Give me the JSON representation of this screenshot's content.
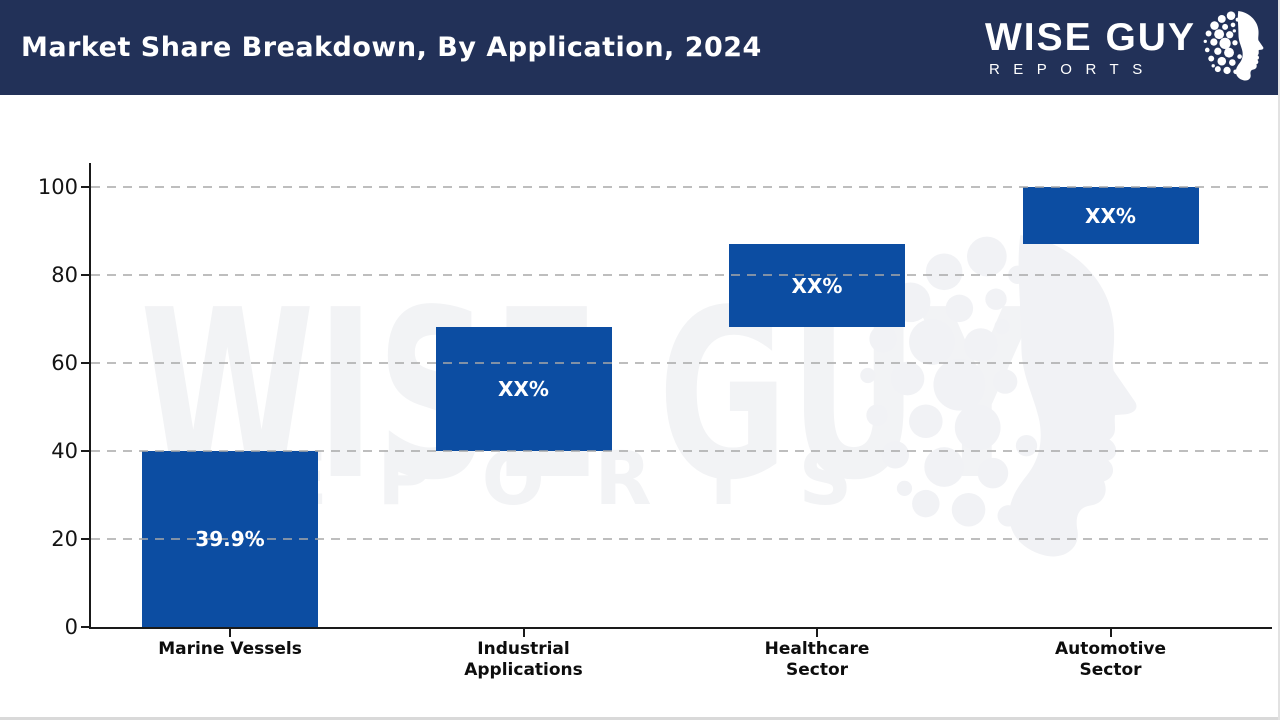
{
  "header": {
    "title": "Market Share Breakdown, By Application, 2024",
    "logo": {
      "line1": "WISE GUY",
      "line2": "REPORTS"
    }
  },
  "watermark": {
    "line1": "WISE GUY",
    "line2": "REPORTS"
  },
  "chart_data": {
    "type": "bar",
    "subtype": "waterfall",
    "title": "Market Share Breakdown, By Application, 2024",
    "unit": "%",
    "categories": [
      "Marine Vessels",
      "Industrial Applications",
      "Healthcare Sector",
      "Automotive Sector"
    ],
    "series": [
      {
        "name": "Marine Vessels",
        "start": 0,
        "end": 39.9,
        "value": 39.9,
        "label": "39.9%"
      },
      {
        "name": "Industrial Applications",
        "start": 39.9,
        "end": 68.2,
        "value": 28.3,
        "label": "XX%"
      },
      {
        "name": "Healthcare Sector",
        "start": 68.2,
        "end": 87.0,
        "value": 18.8,
        "label": "XX%"
      },
      {
        "name": "Automotive Sector",
        "start": 87.0,
        "end": 100,
        "value": 13.0,
        "label": "XX%"
      }
    ],
    "y_ticks": [
      0,
      20,
      40,
      60,
      80,
      100
    ],
    "y_tick_labels": [
      "0",
      "20",
      "40",
      "60",
      "80",
      "100"
    ],
    "ylim": [
      0,
      100
    ],
    "xlabel": "",
    "ylabel": "",
    "legend": "none",
    "grid": "dashed-horizontal",
    "bar_color": "#0c4da2",
    "bar_label_color": "#ffffff"
  },
  "colors": {
    "header_bg": "#223158",
    "bar": "#0c4da2",
    "axis": "#1a1a1a",
    "grid": "#a8a8a8",
    "watermark": "#f2f3f5"
  }
}
